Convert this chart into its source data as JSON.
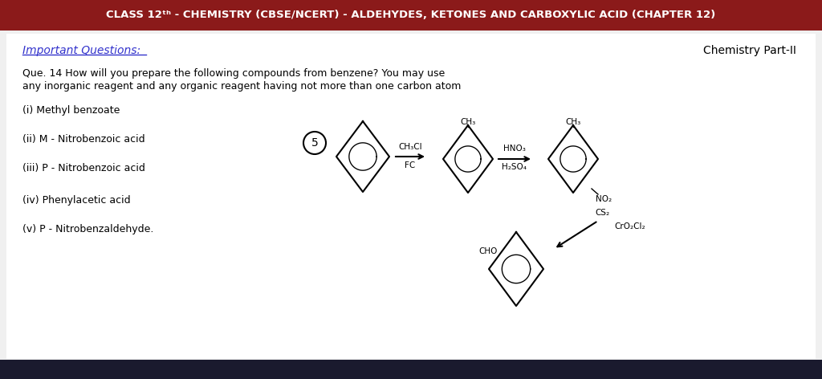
{
  "header_text": "CLASS 12ᵗʰ - CHEMISTRY (CBSE/NCERT) - ALDEHYDES, KETONES AND CARBOXYLIC ACID (CHAPTER 12)",
  "header_bg": "#8B1A1A",
  "header_text_color": "#FFFFFF",
  "bg_color": "#F0F0F0",
  "content_bg": "#FFFFFF",
  "left_label": "Important Questions:",
  "right_label": "Chemistry Part-II",
  "question_line1": "Que. 14 How will you prepare the following compounds from benzene? You may use",
  "question_line2": "any inorganic reagent and any organic reagent having not more than one carbon atom",
  "items": [
    "(i) Methyl benzoate",
    "(ii) M - Nitrobenzoic acid",
    "(iii) P - Nitrobenzoic acid",
    "(iv) Phenylacetic acid",
    "(v) P - Nitrobenzaldehyde."
  ],
  "item_y": [
    138,
    174,
    210,
    250,
    286
  ],
  "label_color": "#3333CC",
  "header_fontsize": 9.5,
  "body_fontsize": 9,
  "chem_fontsize": 7.5
}
